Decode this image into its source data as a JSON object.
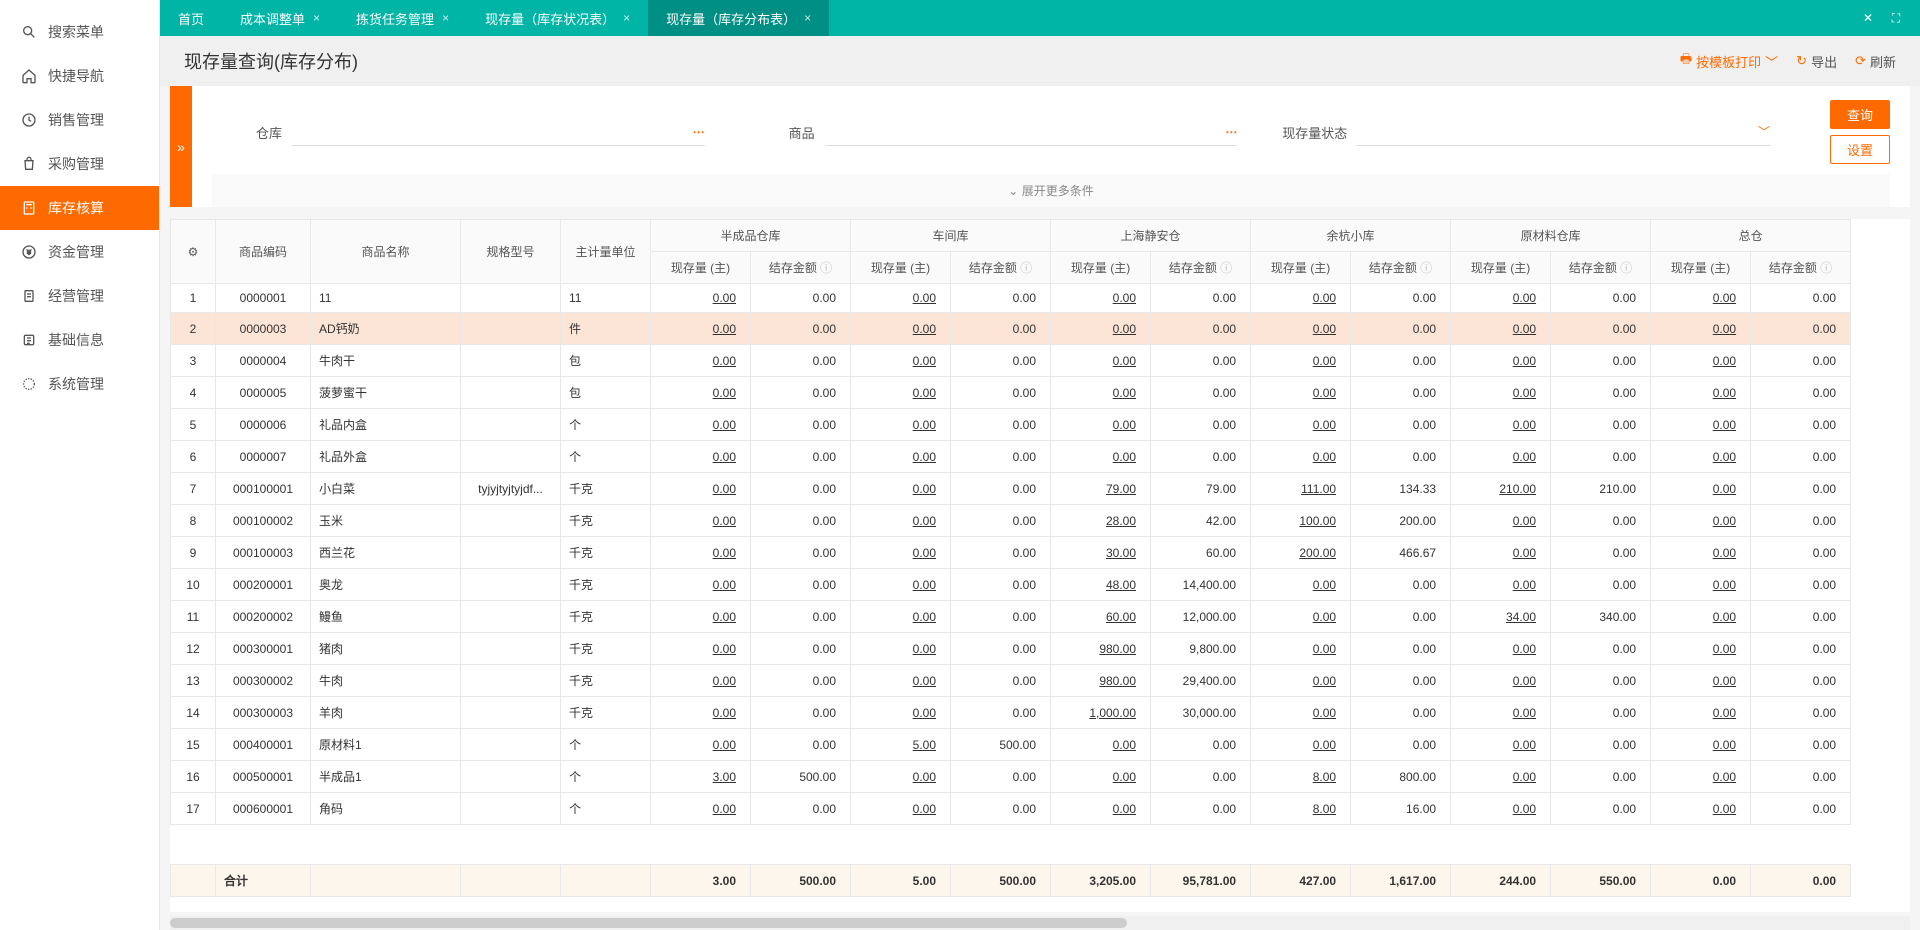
{
  "sidebar": {
    "items": [
      {
        "label": "搜索菜单",
        "icon": "search"
      },
      {
        "label": "快捷导航",
        "icon": "home"
      },
      {
        "label": "销售管理",
        "icon": "badge"
      },
      {
        "label": "采购管理",
        "icon": "bag"
      },
      {
        "label": "库存核算",
        "icon": "calc",
        "active": true
      },
      {
        "label": "资金管理",
        "icon": "coin"
      },
      {
        "label": "经营管理",
        "icon": "clipboard"
      },
      {
        "label": "基础信息",
        "icon": "info"
      },
      {
        "label": "系统管理",
        "icon": "gear"
      }
    ]
  },
  "tabs": [
    {
      "label": "首页",
      "closable": false
    },
    {
      "label": "成本调整单",
      "closable": true
    },
    {
      "label": "拣货任务管理",
      "closable": true
    },
    {
      "label": "现存量（库存状况表）",
      "closable": true
    },
    {
      "label": "现存量（库存分布表）",
      "closable": true,
      "active": true
    }
  ],
  "page": {
    "title": "现存量查询(库存分布)",
    "actions": {
      "print": "按模板打印",
      "export": "导出",
      "refresh": "刷新"
    }
  },
  "filters": {
    "warehouse": "仓库",
    "product": "商品",
    "status": "现存量状态",
    "query": "查询",
    "settings": "设置",
    "expand": "展开更多条件"
  },
  "table": {
    "gearHeader": "",
    "fixedHeaders": [
      "商品编码",
      "商品名称",
      "规格型号",
      "主计量单位"
    ],
    "warehouses": [
      "半成品仓库",
      "车间库",
      "上海静安仓",
      "余杭小库",
      "原材料仓库",
      "总仓"
    ],
    "subHeaders": {
      "qty": "现存量 (主)",
      "amt": "结存金额"
    },
    "rows": [
      {
        "idx": 1,
        "code": "0000001",
        "name": "11",
        "spec": "",
        "unit": "11",
        "vals": [
          [
            "0.00",
            "0.00"
          ],
          [
            "0.00",
            "0.00"
          ],
          [
            "0.00",
            "0.00"
          ],
          [
            "0.00",
            "0.00"
          ],
          [
            "0.00",
            "0.00"
          ],
          [
            "0.00",
            "0.00"
          ]
        ]
      },
      {
        "idx": 2,
        "code": "0000003",
        "name": "AD钙奶",
        "spec": "",
        "unit": "件",
        "highlight": true,
        "vals": [
          [
            "0.00",
            "0.00"
          ],
          [
            "0.00",
            "0.00"
          ],
          [
            "0.00",
            "0.00"
          ],
          [
            "0.00",
            "0.00"
          ],
          [
            "0.00",
            "0.00"
          ],
          [
            "0.00",
            "0.00"
          ]
        ]
      },
      {
        "idx": 3,
        "code": "0000004",
        "name": "牛肉干",
        "spec": "",
        "unit": "包",
        "vals": [
          [
            "0.00",
            "0.00"
          ],
          [
            "0.00",
            "0.00"
          ],
          [
            "0.00",
            "0.00"
          ],
          [
            "0.00",
            "0.00"
          ],
          [
            "0.00",
            "0.00"
          ],
          [
            "0.00",
            "0.00"
          ]
        ]
      },
      {
        "idx": 4,
        "code": "0000005",
        "name": "菠萝蜜干",
        "spec": "",
        "unit": "包",
        "vals": [
          [
            "0.00",
            "0.00"
          ],
          [
            "0.00",
            "0.00"
          ],
          [
            "0.00",
            "0.00"
          ],
          [
            "0.00",
            "0.00"
          ],
          [
            "0.00",
            "0.00"
          ],
          [
            "0.00",
            "0.00"
          ]
        ]
      },
      {
        "idx": 5,
        "code": "0000006",
        "name": "礼品内盒",
        "spec": "",
        "unit": "个",
        "vals": [
          [
            "0.00",
            "0.00"
          ],
          [
            "0.00",
            "0.00"
          ],
          [
            "0.00",
            "0.00"
          ],
          [
            "0.00",
            "0.00"
          ],
          [
            "0.00",
            "0.00"
          ],
          [
            "0.00",
            "0.00"
          ]
        ]
      },
      {
        "idx": 6,
        "code": "0000007",
        "name": "礼品外盒",
        "spec": "",
        "unit": "个",
        "vals": [
          [
            "0.00",
            "0.00"
          ],
          [
            "0.00",
            "0.00"
          ],
          [
            "0.00",
            "0.00"
          ],
          [
            "0.00",
            "0.00"
          ],
          [
            "0.00",
            "0.00"
          ],
          [
            "0.00",
            "0.00"
          ]
        ]
      },
      {
        "idx": 7,
        "code": "000100001",
        "name": "小白菜",
        "spec": "tyjyjtyjtyjdf...",
        "unit": "千克",
        "vals": [
          [
            "0.00",
            "0.00"
          ],
          [
            "0.00",
            "0.00"
          ],
          [
            "79.00",
            "79.00"
          ],
          [
            "111.00",
            "134.33"
          ],
          [
            "210.00",
            "210.00"
          ],
          [
            "0.00",
            "0.00"
          ]
        ]
      },
      {
        "idx": 8,
        "code": "000100002",
        "name": "玉米",
        "spec": "",
        "unit": "千克",
        "vals": [
          [
            "0.00",
            "0.00"
          ],
          [
            "0.00",
            "0.00"
          ],
          [
            "28.00",
            "42.00"
          ],
          [
            "100.00",
            "200.00"
          ],
          [
            "0.00",
            "0.00"
          ],
          [
            "0.00",
            "0.00"
          ]
        ]
      },
      {
        "idx": 9,
        "code": "000100003",
        "name": "西兰花",
        "spec": "",
        "unit": "千克",
        "vals": [
          [
            "0.00",
            "0.00"
          ],
          [
            "0.00",
            "0.00"
          ],
          [
            "30.00",
            "60.00"
          ],
          [
            "200.00",
            "466.67"
          ],
          [
            "0.00",
            "0.00"
          ],
          [
            "0.00",
            "0.00"
          ]
        ]
      },
      {
        "idx": 10,
        "code": "000200001",
        "name": "奥龙",
        "spec": "",
        "unit": "千克",
        "vals": [
          [
            "0.00",
            "0.00"
          ],
          [
            "0.00",
            "0.00"
          ],
          [
            "48.00",
            "14,400.00"
          ],
          [
            "0.00",
            "0.00"
          ],
          [
            "0.00",
            "0.00"
          ],
          [
            "0.00",
            "0.00"
          ]
        ]
      },
      {
        "idx": 11,
        "code": "000200002",
        "name": "鳗鱼",
        "spec": "",
        "unit": "千克",
        "vals": [
          [
            "0.00",
            "0.00"
          ],
          [
            "0.00",
            "0.00"
          ],
          [
            "60.00",
            "12,000.00"
          ],
          [
            "0.00",
            "0.00"
          ],
          [
            "34.00",
            "340.00"
          ],
          [
            "0.00",
            "0.00"
          ]
        ]
      },
      {
        "idx": 12,
        "code": "000300001",
        "name": "猪肉",
        "spec": "",
        "unit": "千克",
        "vals": [
          [
            "0.00",
            "0.00"
          ],
          [
            "0.00",
            "0.00"
          ],
          [
            "980.00",
            "9,800.00"
          ],
          [
            "0.00",
            "0.00"
          ],
          [
            "0.00",
            "0.00"
          ],
          [
            "0.00",
            "0.00"
          ]
        ]
      },
      {
        "idx": 13,
        "code": "000300002",
        "name": "牛肉",
        "spec": "",
        "unit": "千克",
        "vals": [
          [
            "0.00",
            "0.00"
          ],
          [
            "0.00",
            "0.00"
          ],
          [
            "980.00",
            "29,400.00"
          ],
          [
            "0.00",
            "0.00"
          ],
          [
            "0.00",
            "0.00"
          ],
          [
            "0.00",
            "0.00"
          ]
        ]
      },
      {
        "idx": 14,
        "code": "000300003",
        "name": "羊肉",
        "spec": "",
        "unit": "千克",
        "vals": [
          [
            "0.00",
            "0.00"
          ],
          [
            "0.00",
            "0.00"
          ],
          [
            "1,000.00",
            "30,000.00"
          ],
          [
            "0.00",
            "0.00"
          ],
          [
            "0.00",
            "0.00"
          ],
          [
            "0.00",
            "0.00"
          ]
        ]
      },
      {
        "idx": 15,
        "code": "000400001",
        "name": "原材料1",
        "spec": "",
        "unit": "个",
        "vals": [
          [
            "0.00",
            "0.00"
          ],
          [
            "5.00",
            "500.00"
          ],
          [
            "0.00",
            "0.00"
          ],
          [
            "0.00",
            "0.00"
          ],
          [
            "0.00",
            "0.00"
          ],
          [
            "0.00",
            "0.00"
          ]
        ]
      },
      {
        "idx": 16,
        "code": "000500001",
        "name": "半成品1",
        "spec": "",
        "unit": "个",
        "vals": [
          [
            "3.00",
            "500.00"
          ],
          [
            "0.00",
            "0.00"
          ],
          [
            "0.00",
            "0.00"
          ],
          [
            "8.00",
            "800.00"
          ],
          [
            "0.00",
            "0.00"
          ],
          [
            "0.00",
            "0.00"
          ]
        ]
      },
      {
        "idx": 17,
        "code": "000600001",
        "name": "角码",
        "spec": "",
        "unit": "个",
        "vals": [
          [
            "0.00",
            "0.00"
          ],
          [
            "0.00",
            "0.00"
          ],
          [
            "0.00",
            "0.00"
          ],
          [
            "8.00",
            "16.00"
          ],
          [
            "0.00",
            "0.00"
          ],
          [
            "0.00",
            "0.00"
          ]
        ]
      }
    ],
    "total": {
      "label": "合计",
      "vals": [
        [
          "3.00",
          "500.00"
        ],
        [
          "5.00",
          "500.00"
        ],
        [
          "3,205.00",
          "95,781.00"
        ],
        [
          "427.00",
          "1,617.00"
        ],
        [
          "244.00",
          "550.00"
        ],
        [
          "0.00",
          "0.00"
        ]
      ]
    }
  },
  "colors": {
    "primary": "#ff6a00",
    "teal": "#00b5a6",
    "tealDark": "#008f84",
    "highlight": "#fce4d6",
    "footerBg": "#fdf6ec"
  }
}
